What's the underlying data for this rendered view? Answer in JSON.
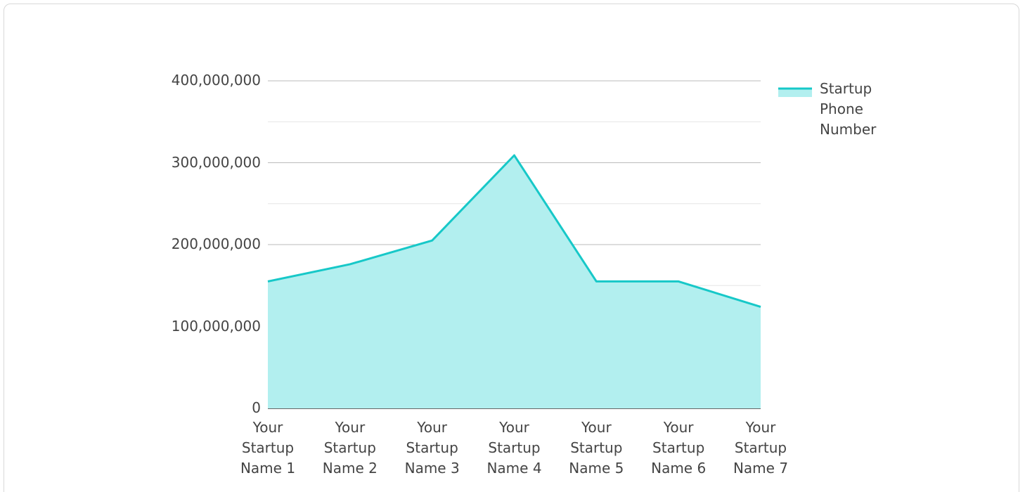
{
  "chart_data": {
    "type": "area",
    "categories": [
      "Your Startup Name 1",
      "Your Startup Name 2",
      "Your Startup Name 3",
      "Your Startup Name 4",
      "Your Startup Name 5",
      "Your Startup Name 6",
      "Your Startup Name 7"
    ],
    "series": [
      {
        "name": "Startup Phone Number",
        "color": "#17c8c8",
        "fill": "#b2efef",
        "values": [
          155000000,
          176000000,
          205000000,
          309000000,
          155000000,
          155000000,
          124000000
        ]
      }
    ],
    "ylim": [
      0,
      400000000
    ],
    "yticks": [
      0,
      {
        "value": 100000000,
        "label": "100,000,000"
      },
      {
        "value": 200000000,
        "label": "200,000,000"
      },
      {
        "value": 300000000,
        "label": "300,000,000"
      },
      {
        "value": 400000000,
        "label": "400,000,000"
      }
    ],
    "minor_yticks": [
      50000000,
      150000000,
      250000000,
      350000000
    ],
    "grid": true,
    "legend": "right"
  }
}
